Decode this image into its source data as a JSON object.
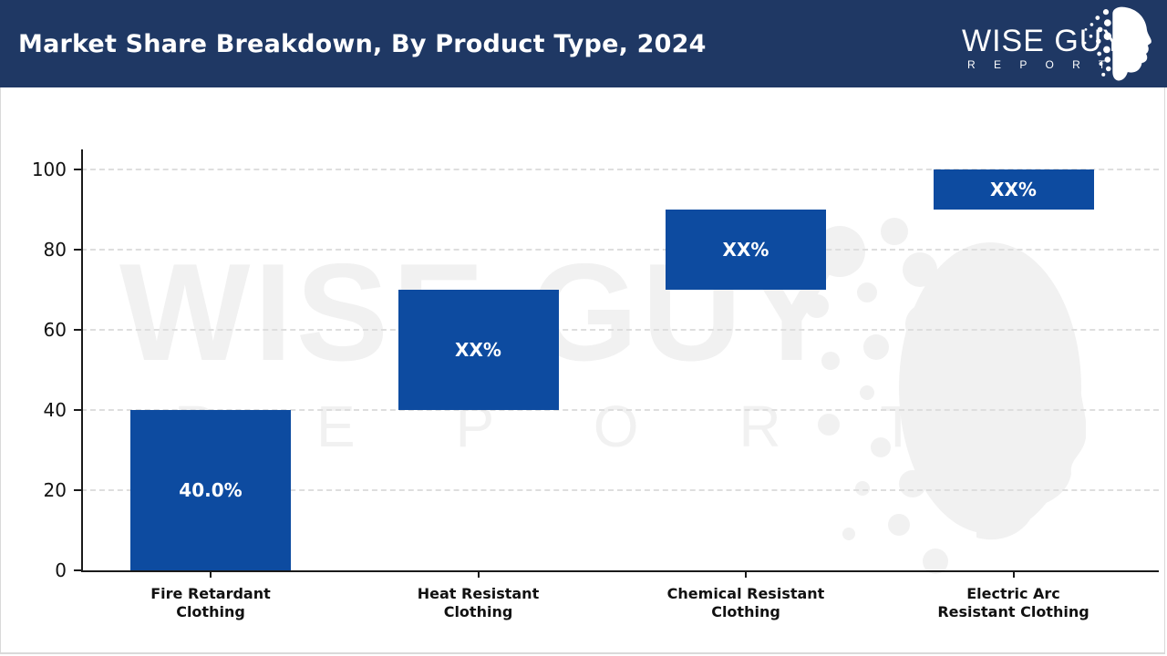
{
  "header": {
    "title": "Market Share Breakdown, By Product Type, 2024",
    "bg_color": "#1f3864",
    "logo": {
      "name": "WISE GUY",
      "sub": "R E P O R T S"
    }
  },
  "watermark": {
    "name": "WISE GUY",
    "sub": "R E P O R T S"
  },
  "chart_data": {
    "type": "bar",
    "subtype": "waterfall",
    "title": "Market Share Breakdown, By Product Type, 2024",
    "xlabel": "",
    "ylabel": "",
    "ylim": [
      0,
      100
    ],
    "yticks": [
      0,
      20,
      40,
      60,
      80,
      100
    ],
    "grid": "horizontal-dashed",
    "legend": "none",
    "bar_color": "#0d4ba0",
    "bar_label_color": "#ffffff",
    "categories": [
      "Fire Retardant\nClothing",
      "Heat Resistant\nClothing",
      "Chemical Resistant\nClothing",
      "Electric Arc\nResistant Clothing"
    ],
    "segments": [
      {
        "category": "Fire Retardant Clothing",
        "start": 0,
        "end": 40,
        "value": 40,
        "label": "40.0%"
      },
      {
        "category": "Heat Resistant Clothing",
        "start": 40,
        "end": 70,
        "value": 30,
        "label": "XX%"
      },
      {
        "category": "Chemical Resistant Clothing",
        "start": 70,
        "end": 90,
        "value": 20,
        "label": "XX%"
      },
      {
        "category": "Electric Arc Resistant Clothing",
        "start": 90,
        "end": 100,
        "value": 10,
        "label": "XX%"
      }
    ]
  }
}
